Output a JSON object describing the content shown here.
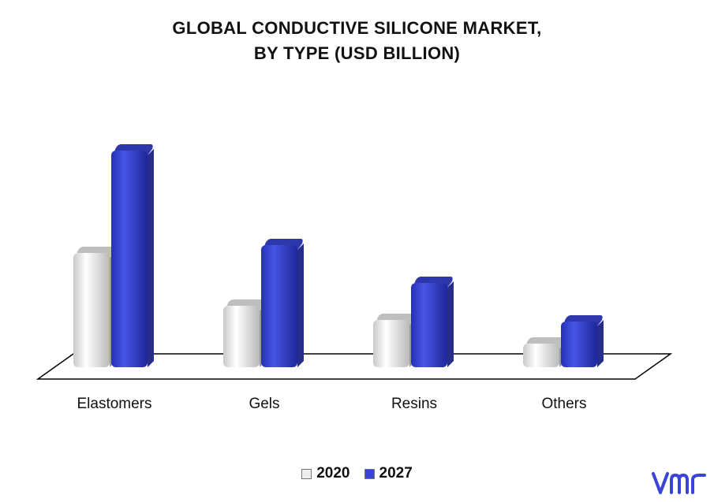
{
  "chart_data": {
    "type": "bar",
    "title_lines": [
      "GLOBAL CONDUCTIVE SILICONE MARKET,",
      "BY TYPE (USD BILLION)"
    ],
    "categories": [
      "Elastomers",
      "Gels",
      "Resins",
      "Others"
    ],
    "series": [
      {
        "name": "2020",
        "values": [
          1.45,
          0.78,
          0.6,
          0.3
        ],
        "color": "#eeeeee"
      },
      {
        "name": "2027",
        "values": [
          2.75,
          1.55,
          1.07,
          0.58
        ],
        "color": "#3a45d6"
      }
    ],
    "ylim": [
      0,
      3
    ],
    "grid": false,
    "legend": "bottom-center",
    "style": "3d-bars"
  },
  "logo": {
    "icon": "vmr-logo-icon",
    "color": "#3a45d6"
  }
}
